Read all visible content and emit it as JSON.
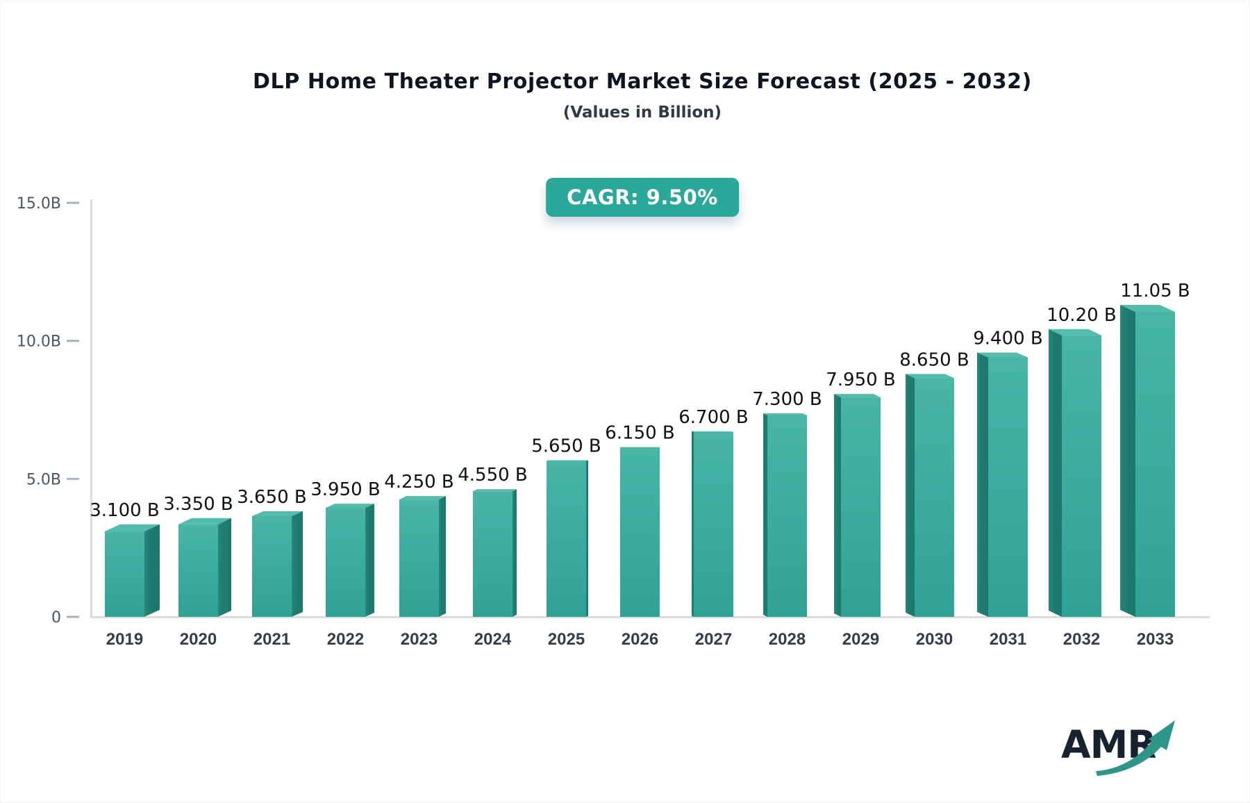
{
  "header": {
    "title": "DLP Home Theater Projector Market Size Forecast (2025 - 2032)",
    "subtitle": "(Values in Billion)",
    "cagr_label": "CAGR: 9.50%"
  },
  "chart_data": {
    "type": "bar",
    "bar_style": "3d-perspective",
    "title": "DLP Home Theater Projector Market Size Forecast (2025 - 2032)",
    "subtitle": "(Values in Billion)",
    "cagr": "9.50%",
    "categories": [
      "2019",
      "2020",
      "2021",
      "2022",
      "2023",
      "2024",
      "2025",
      "2026",
      "2027",
      "2028",
      "2029",
      "2030",
      "2031",
      "2032",
      "2033"
    ],
    "values": [
      3.1,
      3.35,
      3.65,
      3.95,
      4.25,
      4.55,
      5.65,
      6.15,
      6.7,
      7.3,
      7.95,
      8.65,
      9.4,
      10.2,
      11.05
    ],
    "value_labels": [
      "3.100 B",
      "3.350 B",
      "3.650 B",
      "3.950 B",
      "4.250 B",
      "4.550 B",
      "5.650 B",
      "6.150 B",
      "6.700 B",
      "7.300 B",
      "7.950 B",
      "8.650 B",
      "9.400 B",
      "10.20 B",
      "11.05 B"
    ],
    "ylim": [
      0,
      15
    ],
    "yticks": [
      {
        "value": 0,
        "label": "0"
      },
      {
        "value": 5,
        "label": "5.0B"
      },
      {
        "value": 10,
        "label": "10.0B"
      },
      {
        "value": 15,
        "label": "15.0B"
      }
    ],
    "grid": false,
    "legend": false,
    "colors": {
      "bar_front_light": "#48b5a6",
      "bar_front_dark": "#30a294",
      "bar_side": "#1e7d6f",
      "bar_top": "#54bcad",
      "axis": "#d8dce1",
      "tick": "#a9b1ba",
      "tick_label": "#4a5563",
      "category_label": "#333e4b",
      "value_label": "#0c1116",
      "badge_bg": "#2aa89a",
      "badge_text": "#ffffff"
    }
  },
  "logo": {
    "text": "AMR"
  }
}
